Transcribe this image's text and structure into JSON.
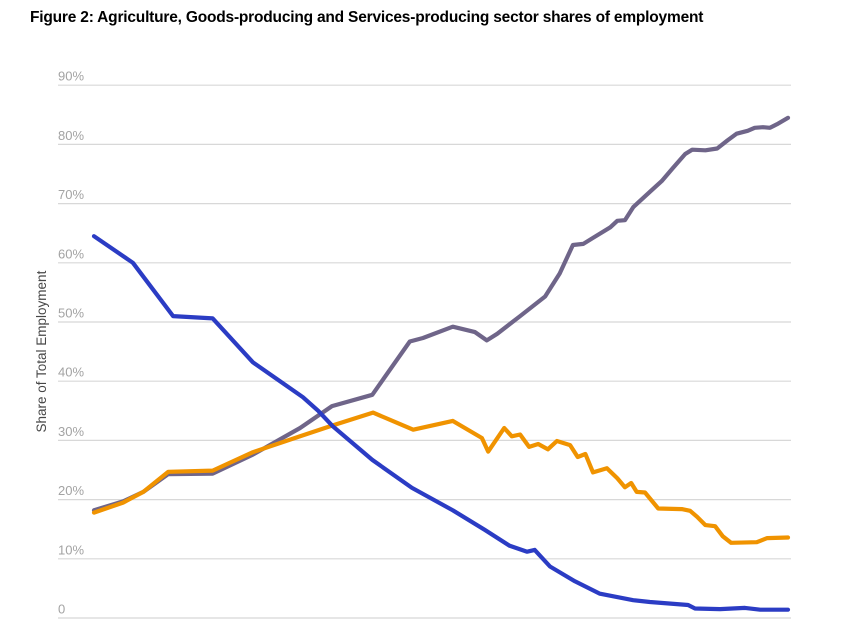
{
  "title": "Figure 2: Agriculture, Goods-producing and Services-producing sector shares of employment",
  "chart_data": {
    "type": "line",
    "title": "Figure 2: Agriculture, Goods-producing and Services-producing sector shares of employment",
    "xlabel": "",
    "ylabel": "Share of Total Employment",
    "ylim": [
      0,
      90
    ],
    "grid": "horizontal-only",
    "legend_position": "none",
    "x_tick_labels": "none visible (unlabeled time axis)",
    "x_unit": "fraction of time axis, 0 = left edge, 1 = right edge",
    "y_unit": "percent share of total employment",
    "yticks": [
      {
        "value": 90,
        "label": "90%"
      },
      {
        "value": 80,
        "label": "80%"
      },
      {
        "value": 70,
        "label": "70%"
      },
      {
        "value": 60,
        "label": "60%"
      },
      {
        "value": 50,
        "label": "50%"
      },
      {
        "value": 40,
        "label": "40%"
      },
      {
        "value": 30,
        "label": "30%"
      },
      {
        "value": 20,
        "label": "20%"
      },
      {
        "value": 10,
        "label": "10%"
      },
      {
        "value": 0,
        "label": "0"
      }
    ],
    "colors": {
      "agriculture": "#2b3cc4",
      "goods_producing": "#f09300",
      "services_producing": "#6f6589",
      "gridline": "#d8d8d8",
      "tick_label": "#a3a3a3",
      "axis_title": "#474747"
    },
    "series": [
      {
        "name": "Services-producing",
        "key": "services",
        "color": "#6f6589",
        "points": [
          [
            0.0,
            18.2
          ],
          [
            0.042,
            19.7
          ],
          [
            0.071,
            21.3
          ],
          [
            0.107,
            24.3
          ],
          [
            0.171,
            24.4
          ],
          [
            0.229,
            27.6
          ],
          [
            0.297,
            32.1
          ],
          [
            0.343,
            35.8
          ],
          [
            0.401,
            37.7
          ],
          [
            0.455,
            46.7
          ],
          [
            0.474,
            47.3
          ],
          [
            0.517,
            49.2
          ],
          [
            0.549,
            48.3
          ],
          [
            0.566,
            46.9
          ],
          [
            0.581,
            48.0
          ],
          [
            0.614,
            51.0
          ],
          [
            0.65,
            54.3
          ],
          [
            0.671,
            58.2
          ],
          [
            0.69,
            63.0
          ],
          [
            0.705,
            63.2
          ],
          [
            0.719,
            64.2
          ],
          [
            0.744,
            66.0
          ],
          [
            0.754,
            67.1
          ],
          [
            0.765,
            67.2
          ],
          [
            0.777,
            69.4
          ],
          [
            0.801,
            72.0
          ],
          [
            0.818,
            73.8
          ],
          [
            0.834,
            76.0
          ],
          [
            0.852,
            78.4
          ],
          [
            0.862,
            79.1
          ],
          [
            0.881,
            79.0
          ],
          [
            0.898,
            79.3
          ],
          [
            0.913,
            80.7
          ],
          [
            0.926,
            81.8
          ],
          [
            0.942,
            82.3
          ],
          [
            0.952,
            82.8
          ],
          [
            0.964,
            82.9
          ],
          [
            0.974,
            82.8
          ],
          [
            0.984,
            83.4
          ],
          [
            1.0,
            84.5
          ]
        ]
      },
      {
        "name": "Goods-producing",
        "key": "goods",
        "color": "#f09300",
        "points": [
          [
            0.0,
            17.8
          ],
          [
            0.042,
            19.5
          ],
          [
            0.071,
            21.3
          ],
          [
            0.107,
            24.7
          ],
          [
            0.171,
            24.9
          ],
          [
            0.229,
            28.0
          ],
          [
            0.297,
            30.7
          ],
          [
            0.343,
            32.5
          ],
          [
            0.402,
            34.7
          ],
          [
            0.46,
            31.8
          ],
          [
            0.517,
            33.3
          ],
          [
            0.559,
            30.4
          ],
          [
            0.568,
            28.1
          ],
          [
            0.591,
            32.1
          ],
          [
            0.602,
            30.7
          ],
          [
            0.614,
            31.0
          ],
          [
            0.627,
            28.9
          ],
          [
            0.64,
            29.4
          ],
          [
            0.654,
            28.5
          ],
          [
            0.667,
            29.9
          ],
          [
            0.686,
            29.2
          ],
          [
            0.697,
            27.2
          ],
          [
            0.708,
            27.7
          ],
          [
            0.719,
            24.6
          ],
          [
            0.739,
            25.3
          ],
          [
            0.754,
            23.6
          ],
          [
            0.765,
            22.1
          ],
          [
            0.774,
            22.8
          ],
          [
            0.782,
            21.3
          ],
          [
            0.794,
            21.2
          ],
          [
            0.813,
            18.5
          ],
          [
            0.847,
            18.4
          ],
          [
            0.859,
            18.1
          ],
          [
            0.869,
            17.1
          ],
          [
            0.881,
            15.7
          ],
          [
            0.895,
            15.5
          ],
          [
            0.906,
            13.8
          ],
          [
            0.918,
            12.7
          ],
          [
            0.955,
            12.8
          ],
          [
            0.97,
            13.5
          ],
          [
            1.0,
            13.6
          ]
        ]
      },
      {
        "name": "Agriculture",
        "key": "agriculture",
        "color": "#2b3cc4",
        "points": [
          [
            0.0,
            64.5
          ],
          [
            0.056,
            60.0
          ],
          [
            0.114,
            51.0
          ],
          [
            0.171,
            50.6
          ],
          [
            0.229,
            43.2
          ],
          [
            0.301,
            37.3
          ],
          [
            0.323,
            35.0
          ],
          [
            0.344,
            32.4
          ],
          [
            0.401,
            26.7
          ],
          [
            0.458,
            22.0
          ],
          [
            0.517,
            18.2
          ],
          [
            0.563,
            14.9
          ],
          [
            0.599,
            12.2
          ],
          [
            0.624,
            11.2
          ],
          [
            0.635,
            11.5
          ],
          [
            0.657,
            8.7
          ],
          [
            0.693,
            6.2
          ],
          [
            0.729,
            4.1
          ],
          [
            0.777,
            3.0
          ],
          [
            0.801,
            2.7
          ],
          [
            0.856,
            2.2
          ],
          [
            0.866,
            1.6
          ],
          [
            0.902,
            1.5
          ],
          [
            0.938,
            1.7
          ],
          [
            0.96,
            1.4
          ],
          [
            1.0,
            1.4
          ]
        ]
      }
    ]
  }
}
